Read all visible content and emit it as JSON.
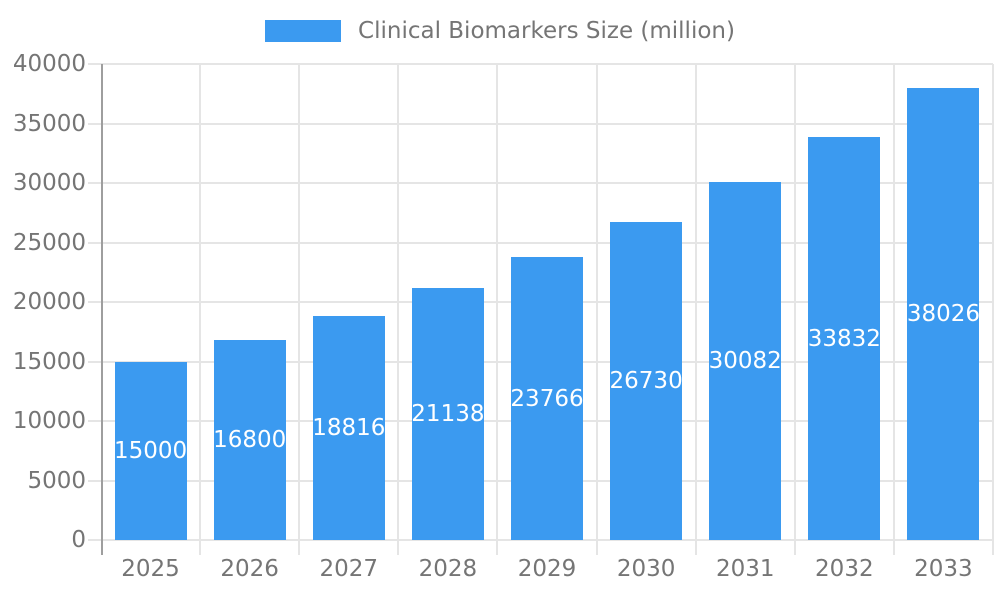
{
  "chart_data": {
    "type": "bar",
    "title": "Clinical Biomarkers Size (million)",
    "legend": {
      "label": "Clinical Biomarkers Size (million)",
      "position": "top-center"
    },
    "categories": [
      "2025",
      "2026",
      "2027",
      "2028",
      "2029",
      "2030",
      "2031",
      "2032",
      "2033"
    ],
    "series": [
      {
        "name": "Clinical Biomarkers Size (million)",
        "values": [
          15000,
          16800,
          18816,
          21138,
          23766,
          26730,
          30082,
          33832,
          38026
        ]
      }
    ],
    "bar_value_labels": [
      "15000",
      "16800",
      "18816",
      "21138",
      "23766",
      "26730",
      "30082",
      "33832",
      "38026"
    ],
    "xlabel": "",
    "ylabel": "",
    "ylim": [
      0,
      40000
    ],
    "y_ticks": [
      0,
      5000,
      10000,
      15000,
      20000,
      25000,
      30000,
      35000,
      40000
    ],
    "grid": true,
    "colors": {
      "bar": "#3b9af0",
      "bar_label_text": "#ffffff",
      "axis_text": "#757575",
      "legend_text": "#757575",
      "grid_line": "#e5e5e5",
      "y_axis_line": "#9e9e9e",
      "background": "#ffffff"
    }
  }
}
